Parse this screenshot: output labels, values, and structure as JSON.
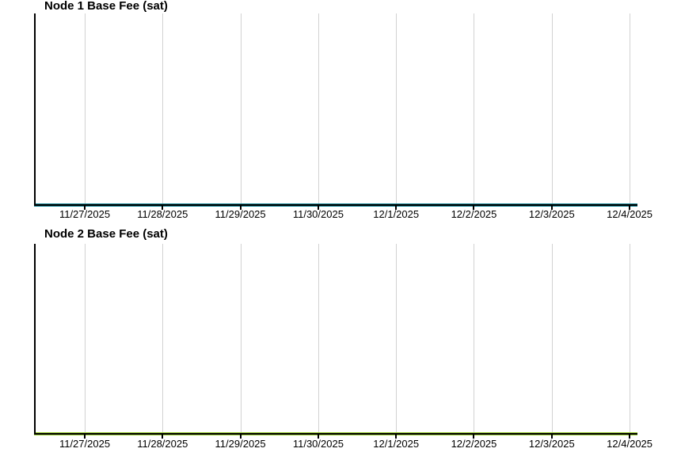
{
  "chart_data": [
    {
      "type": "line",
      "title": "Node 1 Base Fee (sat)",
      "x": [
        "11/27/2025",
        "11/28/2025",
        "11/29/2025",
        "11/30/2025",
        "12/1/2025",
        "12/2/2025",
        "12/3/2025",
        "12/4/2025"
      ],
      "series": [
        {
          "name": "Node 1 Base Fee (sat)",
          "values": [
            0,
            0,
            0,
            0,
            0,
            0,
            0,
            0
          ],
          "color": "#128091"
        }
      ],
      "xlabel": "",
      "ylabel": "",
      "y_tick_labels_visible": false,
      "grid": "vertical",
      "legend": false
    },
    {
      "type": "line",
      "title": "Node 2 Base Fee (sat)",
      "x": [
        "11/27/2025",
        "11/28/2025",
        "11/29/2025",
        "11/30/2025",
        "12/1/2025",
        "12/2/2025",
        "12/3/2025",
        "12/4/2025"
      ],
      "series": [
        {
          "name": "Node 2 Base Fee (sat)",
          "values": [
            0,
            0,
            0,
            0,
            0,
            0,
            0,
            0
          ],
          "color": "#9ACD32"
        }
      ],
      "xlabel": "",
      "ylabel": "",
      "y_tick_labels_visible": false,
      "grid": "vertical",
      "legend": false
    }
  ],
  "styles": {
    "background": "#FFFFFF",
    "gridline_color": "#D2D2D2",
    "axis_color": "#000000",
    "text_color": "#000000"
  }
}
